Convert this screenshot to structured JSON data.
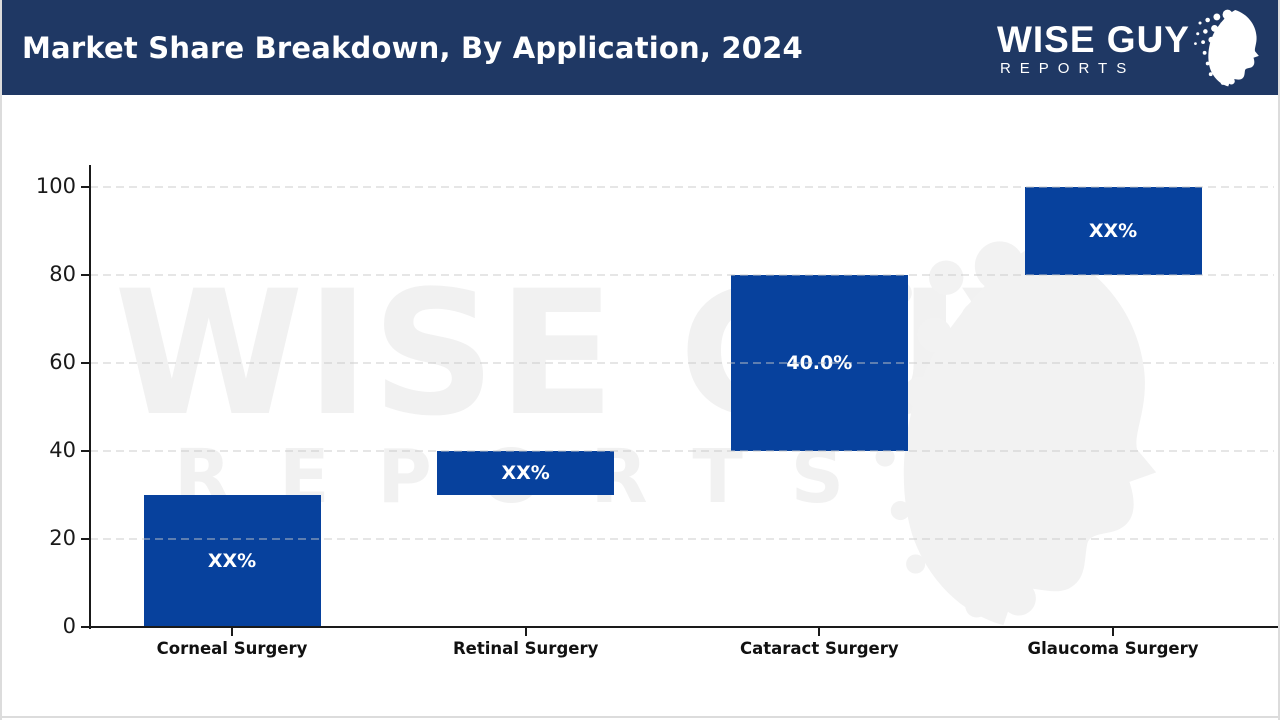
{
  "header": {
    "bg_color": "#1f3864",
    "title": "Market Share Breakdown, By Application, 2024",
    "logo": {
      "wordmark": "WISE GUY",
      "subtext": "REPORTS"
    }
  },
  "watermark": {
    "wordmark": "WISE GUY",
    "subtext": "REPORTS"
  },
  "chart_data": {
    "type": "bar",
    "variant": "floating-segment-waterfall",
    "title": "Market Share Breakdown, By Application, 2024",
    "categories": [
      "Corneal Surgery",
      "Retinal Surgery",
      "Cataract Surgery",
      "Glaucoma Surgery"
    ],
    "segments": [
      {
        "category": "Corneal Surgery",
        "start": 0,
        "end": 30,
        "label": "XX%"
      },
      {
        "category": "Retinal Surgery",
        "start": 30,
        "end": 40,
        "label": "XX%"
      },
      {
        "category": "Cataract Surgery",
        "start": 40,
        "end": 80,
        "label": "40.0%"
      },
      {
        "category": "Glaucoma Surgery",
        "start": 80,
        "end": 100,
        "label": "XX%"
      }
    ],
    "increments": [
      30,
      10,
      40,
      20
    ],
    "unit": "%",
    "ylim": [
      0,
      105
    ],
    "yticks": [
      0,
      20,
      40,
      60,
      80,
      100
    ],
    "grid": {
      "horizontal": true,
      "style": "dashed"
    },
    "legend": "none",
    "colors": {
      "bar": "#07419d",
      "bar_label": "#ffffff",
      "axis": "#1a1a1a",
      "gridline": "#e7e7e7",
      "header_bg": "#1f3864",
      "watermark": "#f1f1f1"
    }
  }
}
